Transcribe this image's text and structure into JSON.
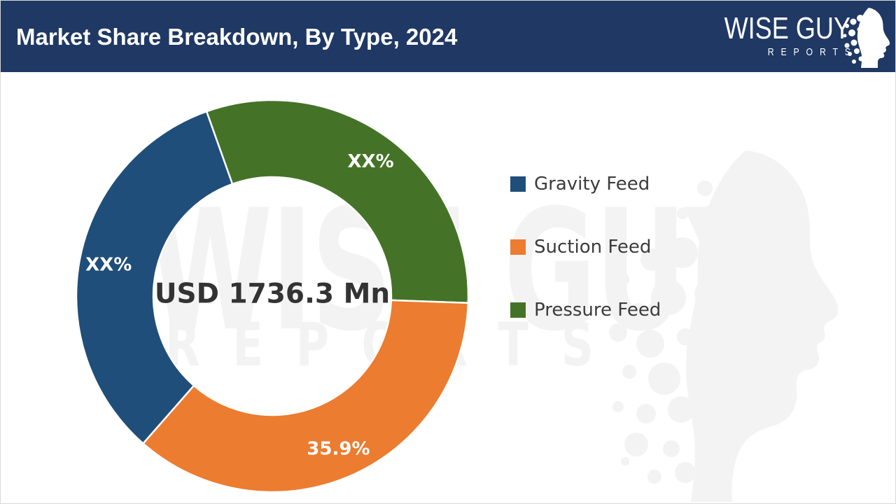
{
  "header": {
    "title": "Market Share Breakdown, By Type, 2024",
    "logo": {
      "line1": "WISE GUY",
      "line2": "REPORTS"
    }
  },
  "watermark": {
    "line1": "WISE GUY",
    "line2": "REPORTS"
  },
  "chart_data": {
    "type": "pie",
    "subtype": "donut",
    "title": "Market Share Breakdown, By Type, 2024",
    "center_label": "USD 1736.3 Mn",
    "segments": [
      {
        "name": "Pressure Feed",
        "value_pct": 31.0,
        "label": "XX%",
        "color": "#447327"
      },
      {
        "name": "Suction Feed",
        "value_pct": 35.9,
        "label": "35.9%",
        "color": "#EC7C30"
      },
      {
        "name": "Gravity Feed",
        "value_pct": 33.1,
        "label": "XX%",
        "color": "#1F4E7A"
      }
    ],
    "start_angle_deg": -19.6,
    "clockwise": true,
    "inner_radius_ratio": 0.607,
    "label_radius_ratio": 0.85,
    "legend_position": "right"
  },
  "legend": {
    "items": [
      {
        "label": "Gravity Feed",
        "color": "#1F4E7A"
      },
      {
        "label": "Suction Feed",
        "color": "#EC7C30"
      },
      {
        "label": "Pressure Feed",
        "color": "#447327"
      }
    ]
  },
  "colors": {
    "header_bg": "#1F3864",
    "watermark": "#F3F3F3",
    "center_text": "#333333",
    "legend_text": "#3C3C3C"
  }
}
